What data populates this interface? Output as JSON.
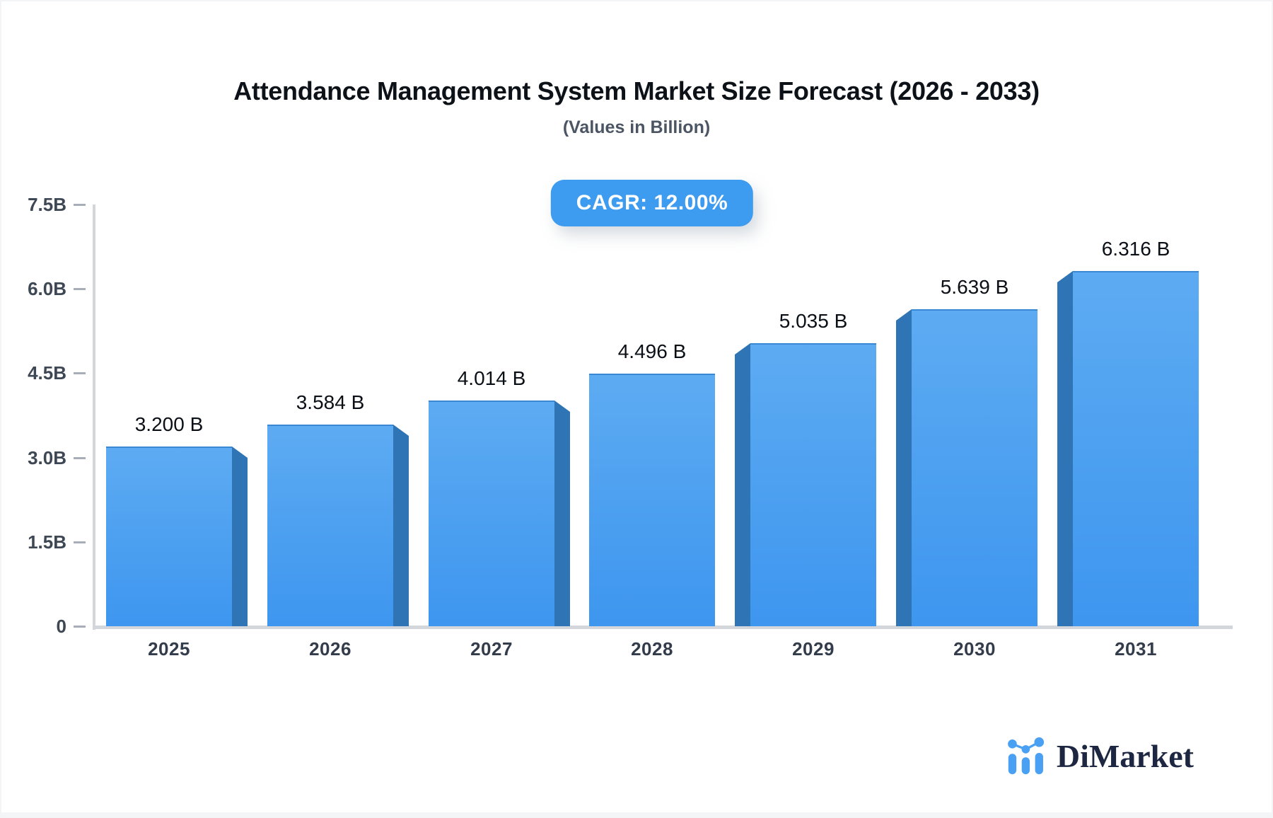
{
  "page": {
    "cagr_badge": "CAGR: 12.00%",
    "brand": {
      "name": "DiMarket",
      "icon": "mini-bar-line-chart-icon"
    }
  },
  "chart_data": {
    "type": "bar",
    "title": "Attendance Management System Market Size Forecast (2026 - 2033)",
    "subtitle": "(Values in Billion)",
    "badge": "CAGR: 12.00%",
    "categories": [
      "2025",
      "2026",
      "2027",
      "2028",
      "2029",
      "2030",
      "2031"
    ],
    "values": [
      3.2,
      3.584,
      4.014,
      4.496,
      5.035,
      5.639,
      6.316
    ],
    "value_labels": [
      "3.200 B",
      "3.584 B",
      "4.014 B",
      "4.496 B",
      "5.035 B",
      "5.639 B",
      "6.316 B"
    ],
    "xlabel": "",
    "ylabel": "",
    "ylim": [
      0,
      7.5
    ],
    "yticks": [
      {
        "value": 7.5,
        "label": "7.5B"
      },
      {
        "value": 6.0,
        "label": "6.0B"
      },
      {
        "value": 4.5,
        "label": "4.5B"
      },
      {
        "value": 3.0,
        "label": "3.0B"
      },
      {
        "value": 1.5,
        "label": "1.5B"
      },
      {
        "value": 0,
        "label": "0"
      }
    ],
    "grid": false,
    "legend": false,
    "bar_3d_side": [
      "right",
      "right",
      "right",
      "none",
      "left",
      "left",
      "left"
    ],
    "colors": {
      "title": "#0d1219",
      "subtitle": "#4b5563",
      "badge_bg": "#3d9bf0",
      "badge_text": "#ffffff",
      "bar_top": "#5dabf2",
      "bar_bottom": "#3e96ef",
      "bar_top_edge": "#3a87d4",
      "bar_side": "#2f74b5",
      "axis": "#d3d7dc",
      "tick": "#a7aeb7",
      "tick_label": "#3e4754",
      "x_label": "#333c4a",
      "value_label": "#0b1017",
      "brand_text": "#1d2742",
      "brand_icon": "#4aa0f2"
    }
  }
}
